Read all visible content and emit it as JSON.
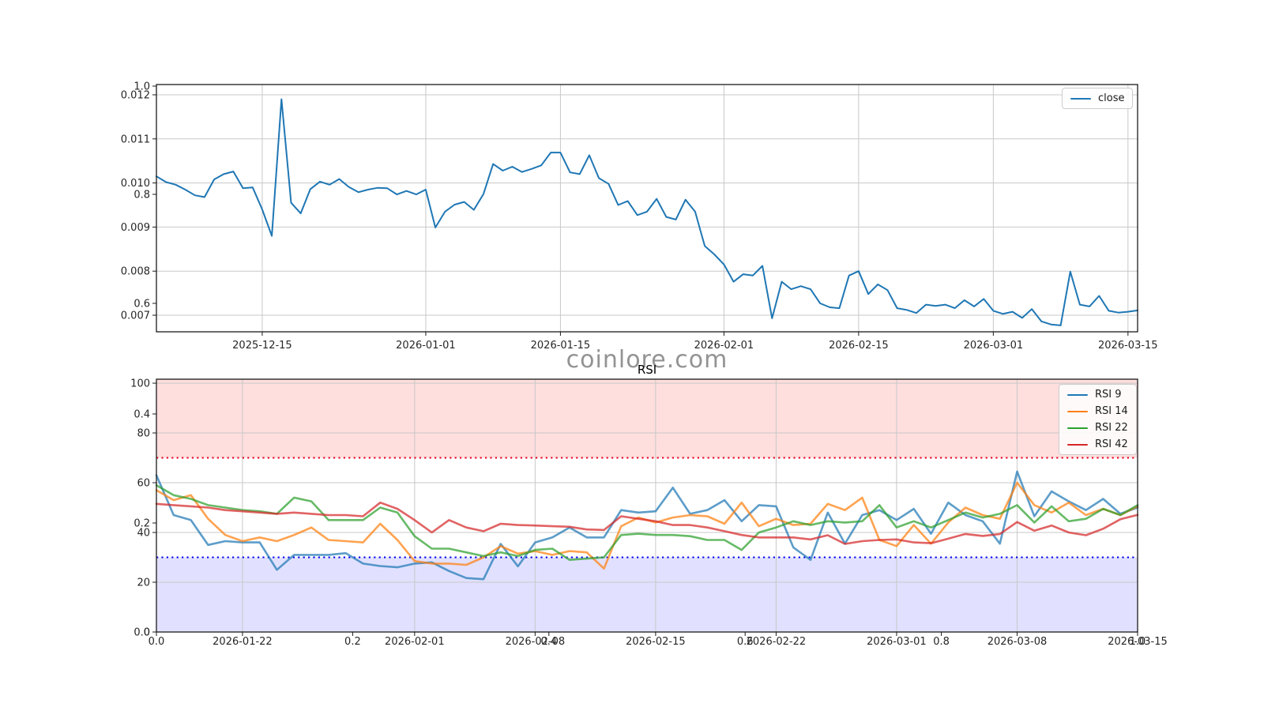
{
  "figure": {
    "watermark": "coinlore.com",
    "background": "#ffffff",
    "grid_color": "#c8c8c8",
    "tick_label_color": "#262626"
  },
  "overlay_axis": {
    "x_tick_labels": [
      "0.0",
      "0.2",
      "0.4",
      "0.6",
      "0.8",
      "1.0"
    ],
    "y_tick_labels": [
      "1.0",
      "0.8",
      "0.6",
      "0.4",
      "0.2",
      "0.0"
    ]
  },
  "chart_data": [
    {
      "id": "price",
      "type": "line",
      "title": "",
      "legend_position": "upper right",
      "grid": true,
      "x_start": "2025-12-04",
      "x_end": "2026-03-15",
      "x_freq": "daily",
      "x_tick_labels": [
        "2025-12-15",
        "2026-01-01",
        "2026-01-15",
        "2026-02-01",
        "2026-02-15",
        "2026-03-01",
        "2026-03-15"
      ],
      "x_tick_indices": [
        11,
        28,
        42,
        59,
        73,
        87,
        101
      ],
      "y_tick_labels": [
        "0.007",
        "0.008",
        "0.009",
        "0.010",
        "0.011",
        "0.012"
      ],
      "y_tick_values": [
        0.007,
        0.008,
        0.009,
        0.01,
        0.011,
        0.012
      ],
      "ylim": [
        0.006624,
        0.012233
      ],
      "series": [
        {
          "name": "close",
          "color": "#1f77b4",
          "width": 2,
          "opacity": 1,
          "values": [
            0.01015,
            0.01002,
            0.00996,
            0.00985,
            0.00972,
            0.00968,
            0.01008,
            0.0102,
            0.01026,
            0.00988,
            0.0099,
            0.0094,
            0.0088,
            0.0119,
            0.00955,
            0.00931,
            0.00986,
            0.01003,
            0.00996,
            0.01009,
            0.00991,
            0.00979,
            0.00985,
            0.00989,
            0.00988,
            0.00974,
            0.00982,
            0.00974,
            0.00985,
            0.00899,
            0.00935,
            0.00951,
            0.00957,
            0.00939,
            0.00975,
            0.01043,
            0.01028,
            0.01037,
            0.01025,
            0.01032,
            0.0104,
            0.01069,
            0.01069,
            0.01024,
            0.0102,
            0.01063,
            0.01011,
            0.00998,
            0.0095,
            0.00959,
            0.00927,
            0.00935,
            0.00964,
            0.00923,
            0.00917,
            0.00962,
            0.00935,
            0.00857,
            0.00838,
            0.00815,
            0.00776,
            0.00793,
            0.0079,
            0.00812,
            0.00693,
            0.00776,
            0.00759,
            0.00766,
            0.00759,
            0.00727,
            0.00718,
            0.00716,
            0.0079,
            0.008,
            0.00748,
            0.0077,
            0.00757,
            0.00716,
            0.00712,
            0.00705,
            0.00724,
            0.00721,
            0.00724,
            0.00716,
            0.00734,
            0.0072,
            0.00737,
            0.0071,
            0.00703,
            0.00708,
            0.00694,
            0.00714,
            0.00686,
            0.00679,
            0.00677,
            0.00799,
            0.00724,
            0.0072,
            0.00744,
            0.0071,
            0.00706,
            0.00708,
            0.00711
          ]
        }
      ]
    },
    {
      "id": "rsi",
      "type": "line",
      "title": "RSI",
      "legend_position": "upper right",
      "grid": true,
      "x_start": "2026-01-17",
      "x_end": "2026-03-15",
      "x_freq": "daily",
      "x_tick_labels": [
        "2026-01-22",
        "2026-02-01",
        "2026-02-08",
        "2026-02-15",
        "2026-02-22",
        "2026-03-01",
        "2026-03-08",
        "2026-03-15"
      ],
      "x_tick_indices": [
        5,
        15,
        22,
        29,
        36,
        43,
        50,
        57
      ],
      "y_tick_labels": [
        "0",
        "20",
        "40",
        "60",
        "80",
        "100"
      ],
      "y_tick_values": [
        0,
        20,
        40,
        60,
        80,
        100
      ],
      "ylim": [
        0,
        101.6
      ],
      "overbought_level": 70,
      "oversold_level": 30,
      "overbought_line_color": "#e8001c",
      "oversold_line_color": "#0000ee",
      "overbought_band_color": "rgba(255,0,0,0.13)",
      "oversold_band_color": "rgba(70,70,255,0.16)",
      "series": [
        {
          "name": "RSI 9",
          "color": "#1f77b4",
          "width": 2.6,
          "opacity": 0.72,
          "values": [
            63,
            47,
            45,
            35,
            36.5,
            36,
            36,
            25,
            31,
            31,
            31,
            31.7,
            27.5,
            26.5,
            26,
            27.5,
            28,
            24.5,
            21.7,
            21.2,
            35.4,
            26.4,
            36,
            38,
            42,
            38,
            38,
            49,
            48,
            48.5,
            58,
            47.5,
            49,
            53,
            44.5,
            51,
            50.5,
            34,
            29,
            48,
            35.5,
            47,
            49,
            45,
            49.5,
            39.5,
            52,
            47,
            44.5,
            35.5,
            64.5,
            46.5,
            56.5,
            52.5,
            49,
            53.5,
            47.5,
            50
          ]
        },
        {
          "name": "RSI 14",
          "color": "#ff7f0e",
          "width": 2.6,
          "opacity": 0.72,
          "values": [
            57,
            53,
            55,
            45.5,
            39,
            36.5,
            38,
            36.5,
            39,
            42,
            37,
            36.5,
            36,
            43.5,
            37,
            28.5,
            27.5,
            27.5,
            27,
            30,
            34.5,
            31.5,
            32.5,
            31,
            32.5,
            32,
            25.5,
            42.5,
            46,
            44,
            46,
            47,
            46.5,
            43.5,
            52,
            42.5,
            45.5,
            43,
            43.5,
            51.5,
            49,
            54,
            37,
            34.5,
            43,
            35.5,
            44,
            50,
            47,
            45.5,
            60,
            51,
            48,
            52,
            47,
            49.5,
            47,
            50.5
          ]
        },
        {
          "name": "RSI 22",
          "color": "#2ca02c",
          "width": 2.6,
          "opacity": 0.72,
          "values": [
            59,
            55,
            53.5,
            51,
            50,
            49,
            48.5,
            47.5,
            54,
            52.5,
            45,
            45,
            45,
            50,
            48,
            38.5,
            33.5,
            33.5,
            32,
            30.5,
            32,
            30.5,
            33,
            33.5,
            29,
            29.5,
            30,
            39,
            39.5,
            39,
            39,
            38.5,
            37,
            37,
            33,
            40,
            42,
            44.5,
            43,
            44.5,
            44,
            44.5,
            51,
            42,
            44.5,
            42,
            45,
            48,
            46,
            47.5,
            51,
            44,
            50.5,
            44.5,
            45.5,
            49.5,
            47,
            51
          ]
        },
        {
          "name": "RSI 42",
          "color": "#d62728",
          "width": 2.6,
          "opacity": 0.72,
          "values": [
            51.5,
            51,
            50.5,
            50,
            49,
            48.5,
            48,
            47.5,
            48,
            47.5,
            47,
            47,
            46.5,
            52,
            49.5,
            45,
            40,
            45,
            42,
            40.5,
            43.5,
            43,
            42.8,
            42.5,
            42.3,
            41.2,
            41,
            46.5,
            45.5,
            44.5,
            43,
            43,
            42,
            40.5,
            39,
            38,
            38,
            38,
            37.2,
            38.9,
            35.4,
            36.5,
            37,
            37.2,
            36,
            35.7,
            37.5,
            39.4,
            38.6,
            39.4,
            44.2,
            40.7,
            42.8,
            40,
            38.9,
            41.5,
            45.3,
            47.1
          ]
        }
      ]
    }
  ]
}
